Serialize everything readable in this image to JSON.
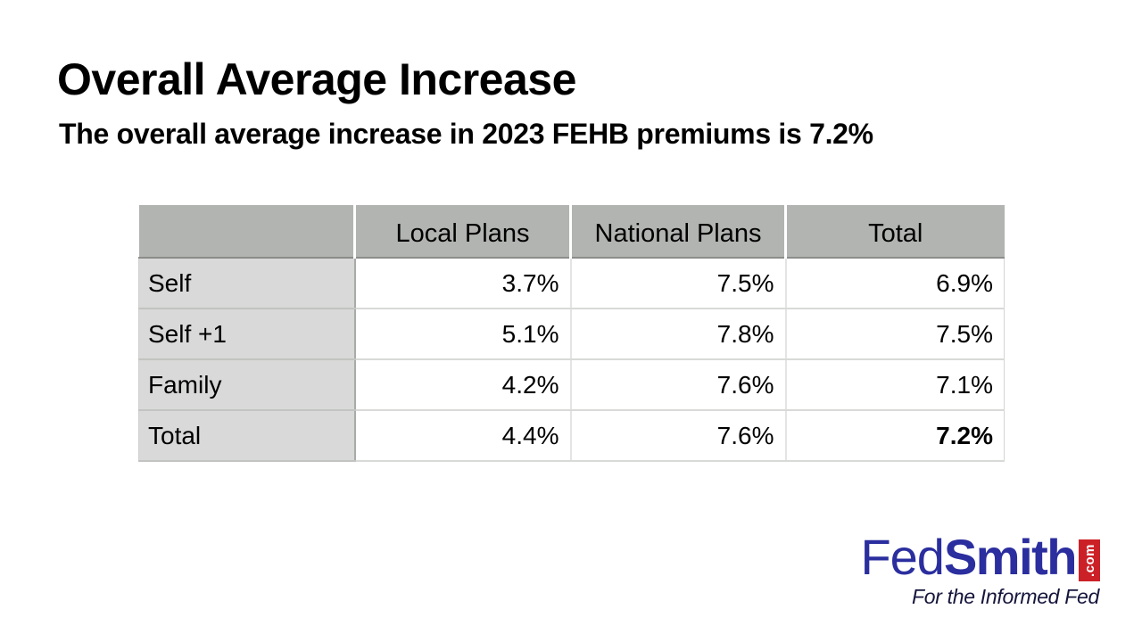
{
  "colors": {
    "logo-blue": "#2b2e9e",
    "logo-red": "#cc2027",
    "header-gray": "#b2b4b1",
    "label-gray": "#d8d9d8",
    "text-black": "#000000"
  },
  "chart_data": {
    "type": "table",
    "title": "Overall Average Increase",
    "subtitle": "The overall average increase in 2023 FEHB premiums is 7.2%",
    "columns": [
      "",
      "Local Plans",
      "National Plans",
      "Total"
    ],
    "rows": [
      {
        "label": "Self",
        "values": [
          "3.7%",
          "7.5%",
          "6.9%"
        ],
        "values_numeric": [
          3.7,
          7.5,
          6.9
        ],
        "emphasis": [
          false,
          false,
          false
        ]
      },
      {
        "label": "Self +1",
        "values": [
          "5.1%",
          "7.8%",
          "7.5%"
        ],
        "values_numeric": [
          5.1,
          7.8,
          7.5
        ],
        "emphasis": [
          false,
          false,
          false
        ]
      },
      {
        "label": "Family",
        "values": [
          "4.2%",
          "7.6%",
          "7.1%"
        ],
        "values_numeric": [
          4.2,
          7.6,
          7.1
        ],
        "emphasis": [
          false,
          false,
          false
        ]
      },
      {
        "label": "Total",
        "values": [
          "4.4%",
          "7.6%",
          "7.2%"
        ],
        "values_numeric": [
          4.4,
          7.6,
          7.2
        ],
        "emphasis": [
          false,
          false,
          true
        ]
      }
    ],
    "unit": "%"
  },
  "logo": {
    "brand_light": "Fed",
    "brand_bold": "Smith",
    "domain": ".com",
    "tagline": "For the Informed Fed"
  }
}
